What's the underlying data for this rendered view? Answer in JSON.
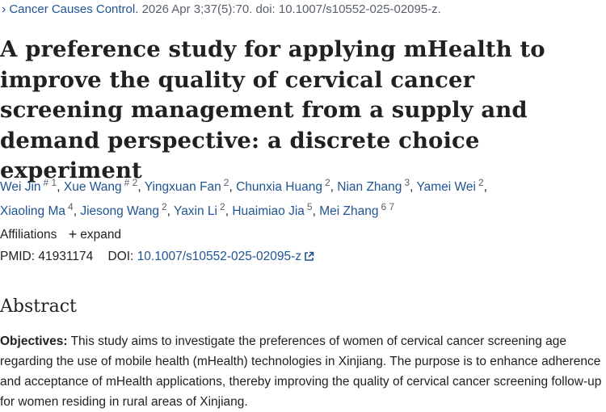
{
  "citation": {
    "journal": "Cancer Causes Control.",
    "details": " 2026 Apr 3;37(5):70. doi: 10.1007/s10552-025-02095-z."
  },
  "article": {
    "title": "A preference study for applying mHealth to improve the quality of cervical cancer screening management from a supply and demand perspective: a discrete choice experiment"
  },
  "authors": [
    {
      "name": "Wei Jin",
      "sup": "# 1"
    },
    {
      "name": "Xue Wang",
      "sup": "# 2"
    },
    {
      "name": "Yingxuan Fan",
      "sup": "2"
    },
    {
      "name": "Chunxia Huang",
      "sup": "2"
    },
    {
      "name": "Nian Zhang",
      "sup": "3"
    },
    {
      "name": "Yamei Wei",
      "sup": "2"
    },
    {
      "name": "Xiaoling Ma",
      "sup": "4"
    },
    {
      "name": "Jiesong Wang",
      "sup": "2"
    },
    {
      "name": "Yaxin Li",
      "sup": "2"
    },
    {
      "name": "Huaimiao Jia",
      "sup": "5"
    },
    {
      "name": "Mei Zhang",
      "sup": "6 7"
    }
  ],
  "affiliations": {
    "label": "Affiliations",
    "expand_label": "expand"
  },
  "identifiers": {
    "pmid_label": "PMID:",
    "pmid": "41931174",
    "doi_label": "DOI:",
    "doi": "10.1007/s10552-025-02095-z"
  },
  "abstract": {
    "heading": "Abstract",
    "objectives_label": "Objectives:",
    "objectives_text": " This study aims to investigate the preferences of women of cervical cancer screening age regarding the use of mobile health (mHealth) technologies in Xinjiang. The purpose is to enhance adherence and acceptance of mHealth applications, thereby improving the quality of cervical cancer screening follow-up for women residing in rural areas of Xinjiang."
  },
  "colors": {
    "link": "#205493",
    "text": "#212121",
    "muted": "#5b616b"
  }
}
